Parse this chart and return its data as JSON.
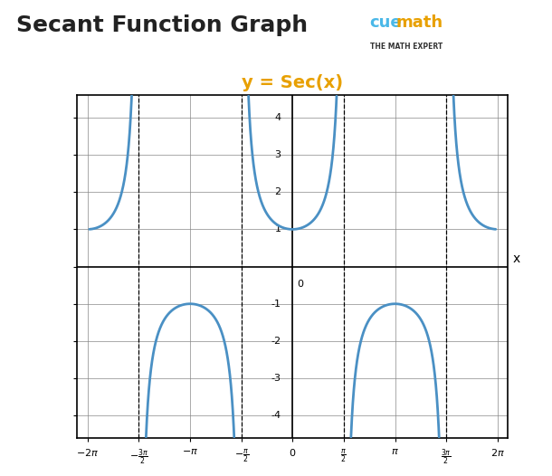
{
  "title": "Secant Function Graph",
  "graph_title": "y = Sec(x)",
  "graph_title_color": "#E8A000",
  "xlabel": "x",
  "curve_color": "#4A90C4",
  "curve_linewidth": 2.0,
  "xlim": [
    -6.6,
    6.6
  ],
  "ylim": [
    -4.6,
    4.6
  ],
  "yticks": [
    -4,
    -3,
    -2,
    -1,
    1,
    2,
    3,
    4
  ],
  "xtick_positions": [
    -6.28318,
    -4.71239,
    -3.14159,
    -1.5708,
    0,
    1.5708,
    3.14159,
    4.71239,
    6.28318
  ],
  "asymptotes": [
    -4.71239,
    -1.5708,
    1.5708,
    4.71239
  ],
  "background_color": "#ffffff",
  "title_fontsize": 18,
  "graph_title_fontsize": 14,
  "cue_color": "#4AB8E8",
  "math_color": "#E8A000",
  "subtitle_color": "#333333"
}
